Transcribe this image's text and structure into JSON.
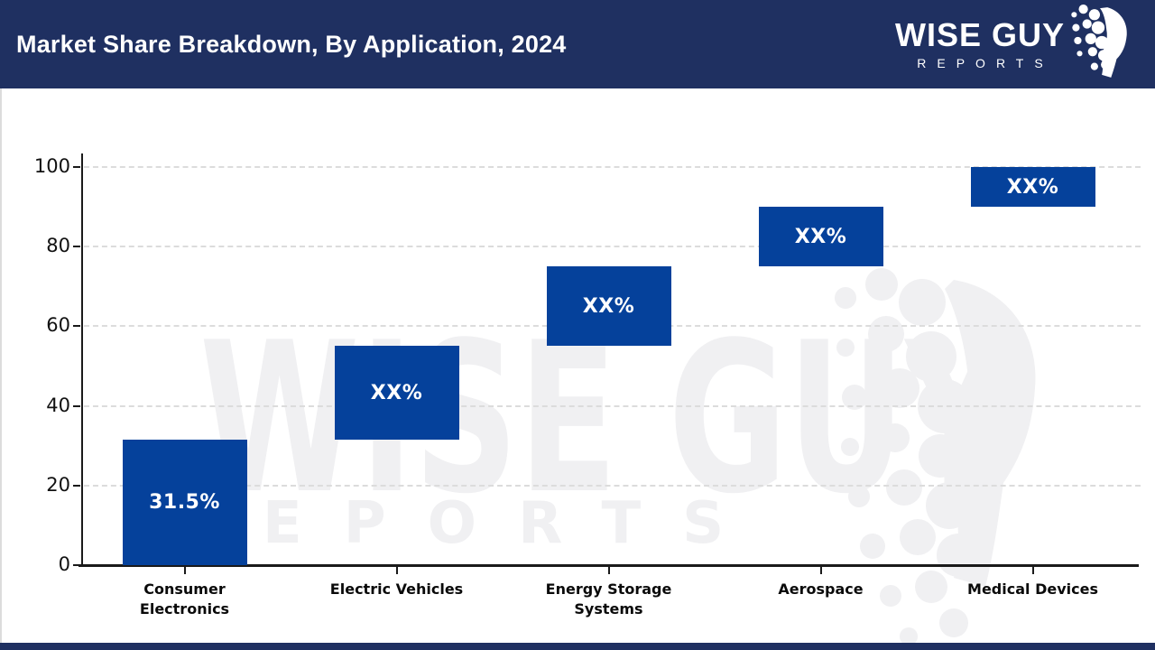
{
  "header": {
    "title": "Market Share Breakdown, By Application, 2024",
    "logo": {
      "line1": "WISE GUY",
      "line2": "REPORTS"
    }
  },
  "watermark": {
    "line1": "WISE GUY",
    "line2": "REPORTS"
  },
  "colors": {
    "header_navy": "#1f3061",
    "bar_blue": "#05419b",
    "grid_gray": "#dcdcdc",
    "axis_black": "#1a1a1a",
    "watermark_gray": "#f0f0f2",
    "bar_label_white": "#ffffff"
  },
  "chart_data": {
    "type": "bar",
    "subtype": "waterfall",
    "title": "Market Share Breakdown, By Application, 2024",
    "categories": [
      "Consumer Electronics",
      "Electric Vehicles",
      "Energy Storage Systems",
      "Aerospace",
      "Medical Devices"
    ],
    "segments": [
      {
        "category": "Consumer Electronics",
        "start": 0,
        "end": 31.5,
        "label": "31.5%"
      },
      {
        "category": "Electric Vehicles",
        "start": 31.5,
        "end": 55,
        "label": "XX%"
      },
      {
        "category": "Energy Storage Systems",
        "start": 55,
        "end": 75,
        "label": "XX%"
      },
      {
        "category": "Aerospace",
        "start": 75,
        "end": 90,
        "label": "XX%"
      },
      {
        "category": "Medical Devices",
        "start": 90,
        "end": 100,
        "label": "XX%"
      }
    ],
    "values_shown": [
      "31.5%",
      "XX%",
      "XX%",
      "XX%",
      "XX%"
    ],
    "xlabel": "",
    "ylabel": "",
    "yticks": [
      0,
      20,
      40,
      60,
      80,
      100
    ],
    "ylim": [
      0,
      103.5
    ],
    "grid": "horizontal-dashed",
    "legend": "none"
  }
}
